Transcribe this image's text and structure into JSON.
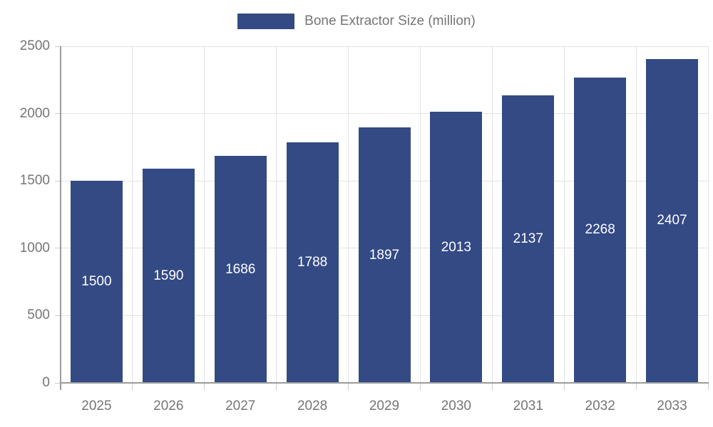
{
  "chart_data": {
    "type": "bar",
    "title": "Bone Extractor Size (million)",
    "categories": [
      "2025",
      "2026",
      "2027",
      "2028",
      "2029",
      "2030",
      "2031",
      "2032",
      "2033"
    ],
    "values": [
      1500,
      1590,
      1686,
      1788,
      1897,
      2013,
      2137,
      2268,
      2407
    ],
    "xlabel": "",
    "ylabel": "",
    "ylim": [
      0,
      2500
    ],
    "yticks": [
      0,
      500,
      1000,
      1500,
      2000,
      2500
    ],
    "grid": true,
    "legend_position": "top-center",
    "bar_labels_inside": true,
    "colors": {
      "bar": "#344a85",
      "bar_label": "#ffffff",
      "axis_text": "#757575",
      "grid_line": "#e3e3e3",
      "axis_line": "#9b9b9b",
      "tick_mark": "#cccccc",
      "background": "#ffffff"
    }
  }
}
